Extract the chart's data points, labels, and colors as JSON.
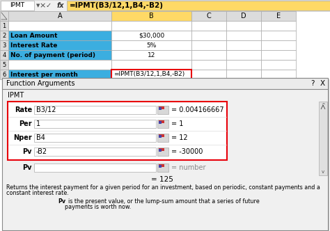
{
  "formula_bar_name": "IPMT",
  "formula_bar_formula": "=IPMT(B3/12,1,B4,-B2)",
  "col_header_B_color": "#FFD966",
  "cell_blue": "#3BAEE0",
  "spreadsheet_rows": [
    {
      "row": 1,
      "label": "",
      "value": ""
    },
    {
      "row": 2,
      "label": "Loan Amount",
      "value": "$30,000"
    },
    {
      "row": 3,
      "label": "Interest Rate",
      "value": "5%"
    },
    {
      "row": 4,
      "label": "No. of payment (period)",
      "value": "12"
    },
    {
      "row": 5,
      "label": "",
      "value": ""
    },
    {
      "row": 6,
      "label": "Interest per month",
      "value": "=IPMT(B3/12,1,B4,-B2)"
    }
  ],
  "dialog_title": "Function Arguments",
  "dialog_func": "IPMT",
  "dialog_args": [
    {
      "name": "Rate",
      "input": "B3/12",
      "result": "= 0.004166667"
    },
    {
      "name": "Per",
      "input": "1",
      "result": "= 1"
    },
    {
      "name": "Nper",
      "input": "B4",
      "result": "= 12"
    },
    {
      "name": "Pv",
      "input": "-B2",
      "result": "= -30000"
    }
  ],
  "dialog_extra_label": "Pv",
  "dialog_extra_result": "= number",
  "dialog_result": "= 125",
  "dialog_desc1": "Returns the interest payment for a given period for an investment, based on periodic, constant payments and a",
  "dialog_desc2": "constant interest rate.",
  "dialog_desc3_bold": "Pv",
  "dialog_desc3_rest": "  is the present value, or the lump-sum amount that a series of future",
  "dialog_desc4": "        payments is worth now.",
  "bg_color": "#F0F0F0",
  "white": "#FFFFFF",
  "red_border": "#E8000A",
  "col_headers": [
    "A",
    "B",
    "C",
    "D",
    "E"
  ]
}
